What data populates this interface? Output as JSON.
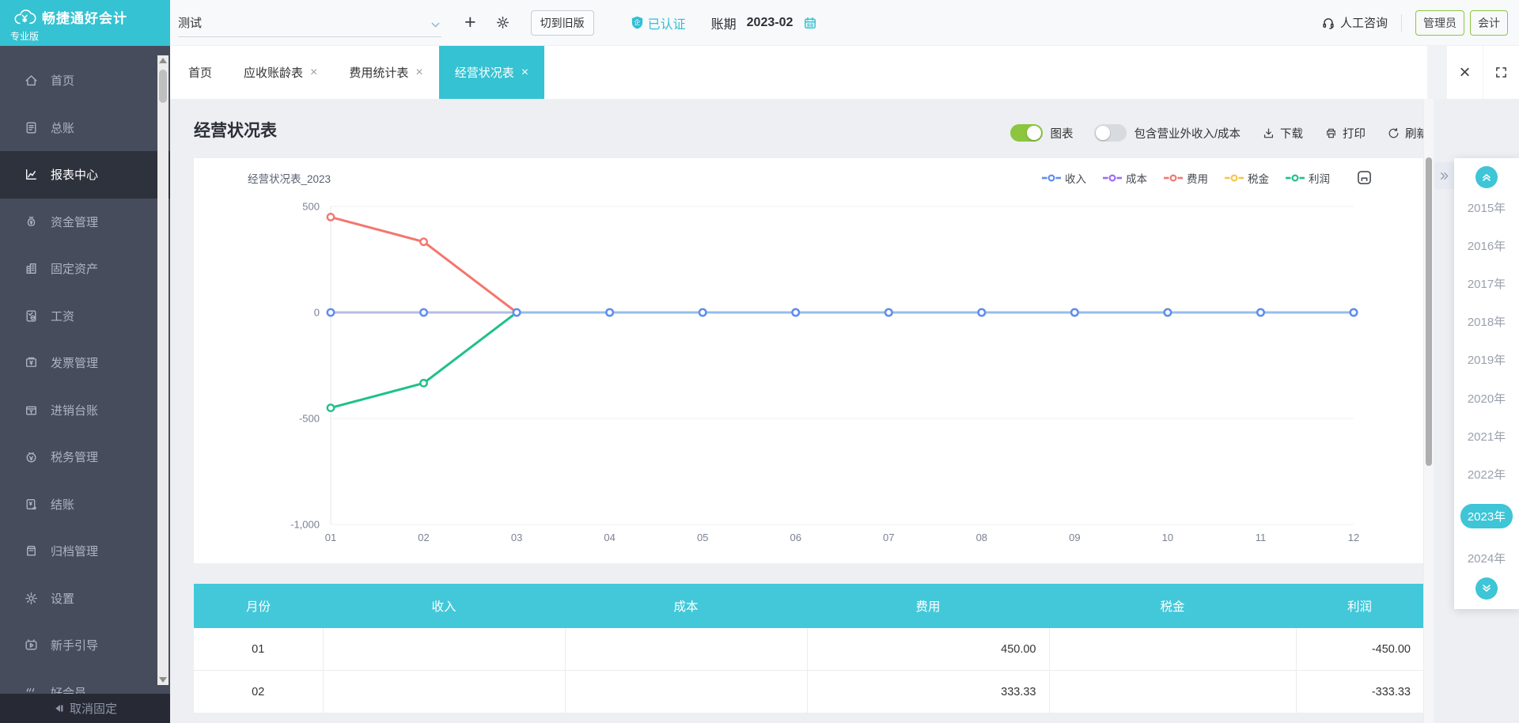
{
  "brand": {
    "name": "畅捷通好会计",
    "edition": "专业版"
  },
  "topbar": {
    "workspace": "测试",
    "switch_old_label": "切到旧版",
    "certified_label": "已认证",
    "period_label": "账期",
    "period_value": "2023-02",
    "support_label": "人工咨询",
    "roles": [
      "管理员",
      "会计"
    ]
  },
  "tabs": [
    {
      "label": "首页",
      "closable": false,
      "active": false
    },
    {
      "label": "应收账龄表",
      "closable": true,
      "active": false
    },
    {
      "label": "费用统计表",
      "closable": true,
      "active": false
    },
    {
      "label": "经营状况表",
      "closable": true,
      "active": true
    }
  ],
  "sidebar": {
    "active": "报表中心",
    "pin_label": "取消固定",
    "items": [
      {
        "label": "首页",
        "icon": "home"
      },
      {
        "label": "总账",
        "icon": "ledger"
      },
      {
        "label": "报表中心",
        "icon": "report"
      },
      {
        "label": "资金管理",
        "icon": "fund"
      },
      {
        "label": "固定资产",
        "icon": "asset"
      },
      {
        "label": "工资",
        "icon": "salary"
      },
      {
        "label": "发票管理",
        "icon": "invoice"
      },
      {
        "label": "进销台账",
        "icon": "inventory"
      },
      {
        "label": "税务管理",
        "icon": "tax"
      },
      {
        "label": "结账",
        "icon": "closing"
      },
      {
        "label": "归档管理",
        "icon": "archive"
      },
      {
        "label": "设置",
        "icon": "gear"
      },
      {
        "label": "新手引导",
        "icon": "guide"
      },
      {
        "label": "好会员",
        "icon": "member",
        "partial": true
      }
    ]
  },
  "page": {
    "title": "经营状况表",
    "toggles": [
      {
        "label": "图表",
        "on": true
      },
      {
        "label": "包含营业外收入/成本",
        "on": false
      }
    ],
    "actions": [
      {
        "label": "下载",
        "icon": "download"
      },
      {
        "label": "打印",
        "icon": "print"
      },
      {
        "label": "刷新",
        "icon": "refresh"
      }
    ]
  },
  "chart_data": {
    "type": "line",
    "title": "经营状况表_2023",
    "x": [
      "01",
      "02",
      "03",
      "04",
      "05",
      "06",
      "07",
      "08",
      "09",
      "10",
      "11",
      "12"
    ],
    "ylim": [
      -1000,
      500
    ],
    "ytick_values": [
      500,
      0,
      -500,
      -1000
    ],
    "ytick_labels": [
      "500",
      "0",
      "-500",
      "-1,000"
    ],
    "grid": true,
    "legend_position": "top-right",
    "series": [
      {
        "name": "收入",
        "color": "#5f8df6",
        "line_color": "#a9bcfa",
        "values": [
          0,
          0,
          0,
          0,
          0,
          0,
          0,
          0,
          0,
          0,
          0,
          0
        ]
      },
      {
        "name": "成本",
        "color": "#9a6cf5",
        "line_color": "#9a6cf5",
        "values": [
          0,
          0,
          0,
          0,
          0,
          0,
          0,
          0,
          0,
          0,
          0,
          0
        ]
      },
      {
        "name": "费用",
        "color": "#f4766d",
        "line_color": "#f4766d",
        "values": [
          450,
          333.33,
          0,
          0,
          0,
          0,
          0,
          0,
          0,
          0,
          0,
          0
        ]
      },
      {
        "name": "税金",
        "color": "#f6c64a",
        "line_color": "#f6c64a",
        "values": [
          0,
          0,
          0,
          0,
          0,
          0,
          0,
          0,
          0,
          0,
          0,
          0
        ]
      },
      {
        "name": "利润",
        "color": "#20c08c",
        "line_color": "#20c08c",
        "values": [
          -450,
          -333.33,
          0,
          0,
          0,
          0,
          0,
          0,
          0,
          0,
          0,
          0
        ]
      }
    ]
  },
  "year_panel": {
    "years": [
      "2015年",
      "2016年",
      "2017年",
      "2018年",
      "2019年",
      "2020年",
      "2021年",
      "2022年",
      "2023年",
      "2024年"
    ],
    "selected": "2023年"
  },
  "table": {
    "columns": [
      "月份",
      "收入",
      "成本",
      "费用",
      "税金",
      "利润"
    ],
    "rows": [
      [
        "01",
        "",
        "",
        "450.00",
        "",
        "-450.00"
      ],
      [
        "02",
        "",
        "",
        "333.33",
        "",
        "-333.33"
      ]
    ]
  },
  "colors": {
    "brand_cyan": "#35c2d2",
    "table_header_cyan": "#43c8d9",
    "toggle_on_green": "#8cc63f",
    "role_button_border": "#8cc63f",
    "sidebar_bg": "#474c5d",
    "sidebar_active_bg": "#2e323d"
  }
}
